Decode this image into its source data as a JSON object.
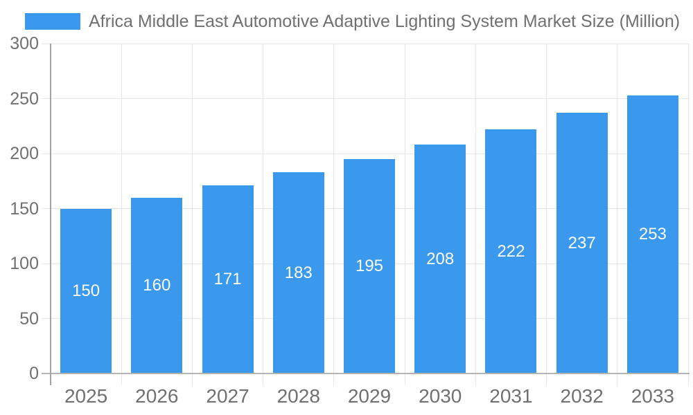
{
  "legend": {
    "label": "Africa Middle East Automotive Adaptive Lighting System Market Size (Million)",
    "swatch_icon": "legend-swatch-rect"
  },
  "colors": {
    "bar": "#3A99EC",
    "axis": "#A3A3A3",
    "baseline": "#B3B3B3",
    "grid": "#E6E6E6",
    "tick_text": "#707070",
    "value_text": "#FFFFFF",
    "background": "#FFFFFF"
  },
  "chart_data": {
    "type": "bar",
    "title": "Africa Middle East Automotive Adaptive Lighting System Market Size (Million)",
    "categories": [
      "2025",
      "2026",
      "2027",
      "2028",
      "2029",
      "2030",
      "2031",
      "2032",
      "2033"
    ],
    "values": [
      150,
      160,
      171,
      183,
      195,
      208,
      222,
      237,
      253
    ],
    "xlabel": "",
    "ylabel": "",
    "ylim": [
      0,
      300
    ],
    "ytick_step": 50,
    "ytick_labels": [
      "0",
      "50",
      "100",
      "150",
      "200",
      "250",
      "300"
    ],
    "grid": true,
    "legend_position": "top-left",
    "value_label_position": "inside-center",
    "bar_color": "#3A99EC"
  }
}
